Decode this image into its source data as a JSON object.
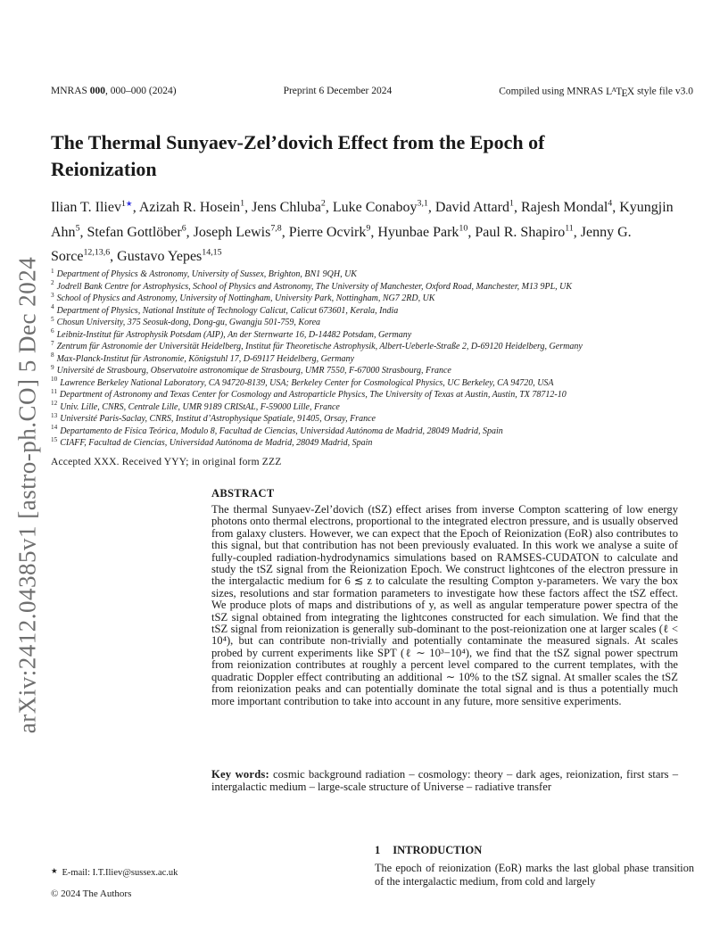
{
  "watermark": "arXiv:2412.04385v1  [astro-ph.CO]  5 Dec 2024",
  "header": {
    "journal": "MNRAS ",
    "volume_bold": "000",
    "pages": ", 000–000 (2024)",
    "center": "Preprint 6 December 2024",
    "right_prefix": "Compiled using MNRAS ",
    "latex": {
      "l": "L",
      "a": "A",
      "t": "T",
      "e": "E",
      "x": "X"
    },
    "right_suffix": " style file v3.0"
  },
  "title": "The Thermal Sunyaev-Zel’dovich Effect from the Epoch of Reionization",
  "authors": [
    {
      "name": "Ilian T. Iliev",
      "sup": "1",
      "star": true
    },
    {
      "name": "Azizah R. Hosein",
      "sup": "1"
    },
    {
      "name": "Jens Chluba",
      "sup": "2"
    },
    {
      "name": "Luke Conaboy",
      "sup": "3,1"
    },
    {
      "name": "David Attard",
      "sup": "1"
    },
    {
      "name": "Rajesh Mondal",
      "sup": "4"
    },
    {
      "name": "Kyungjin Ahn",
      "sup": "5"
    },
    {
      "name": "Stefan Gottlöber",
      "sup": "6"
    },
    {
      "name": "Joseph Lewis",
      "sup": "7,8"
    },
    {
      "name": "Pierre Ocvirk",
      "sup": "9"
    },
    {
      "name": "Hyunbae Park",
      "sup": "10"
    },
    {
      "name": "Paul R. Shapiro",
      "sup": "11"
    },
    {
      "name": "Jenny G. Sorce",
      "sup": "12,13,6"
    },
    {
      "name": "Gustavo Yepes",
      "sup": "14,15"
    }
  ],
  "affiliations": [
    {
      "num": "1",
      "text": "Department of Physics & Astronomy, University of Sussex, Brighton, BN1 9QH, UK"
    },
    {
      "num": "2",
      "text": "Jodrell Bank Centre for Astrophysics, School of Physics and Astronomy, The University of Manchester, Oxford Road, Manchester, M13 9PL, UK"
    },
    {
      "num": "3",
      "text": "School of Physics and Astronomy, University of Nottingham, University Park, Nottingham, NG7 2RD, UK"
    },
    {
      "num": "4",
      "text": "Department of Physics, National Institute of Technology Calicut, Calicut 673601, Kerala, India"
    },
    {
      "num": "5",
      "text": "Chosun University, 375 Seosuk-dong, Dong-gu, Gwangju 501-759, Korea"
    },
    {
      "num": "6",
      "text": "Leibniz-Institut für Astrophysik Potsdam (AIP), An der Sternwarte 16, D-14482 Potsdam, Germany"
    },
    {
      "num": "7",
      "text": "Zentrum für Astronomie der Universität Heidelberg, Institut für Theoretische Astrophysik, Albert-Ueberle-Straße 2, D-69120 Heidelberg, Germany"
    },
    {
      "num": "8",
      "text": "Max-Planck-Institut für Astronomie, Königstuhl 17, D-69117 Heidelberg, Germany"
    },
    {
      "num": "9",
      "text": "Université de Strasbourg, Observatoire astronomique de Strasbourg, UMR 7550, F-67000 Strasbourg, France"
    },
    {
      "num": "10",
      "text": "Lawrence Berkeley National Laboratory, CA 94720-8139, USA; Berkeley Center for Cosmological Physics, UC Berkeley, CA 94720, USA"
    },
    {
      "num": "11",
      "text": "Department of Astronomy and Texas Center for Cosmology and Astroparticle Physics, The University of Texas at Austin, Austin, TX 78712-10"
    },
    {
      "num": "12",
      "text": "Univ. Lille, CNRS, Centrale Lille, UMR 9189 CRIStAL, F-59000 Lille, France"
    },
    {
      "num": "13",
      "text": "Université Paris-Saclay, CNRS, Institut d’Astrophysique Spatiale, 91405, Orsay, France"
    },
    {
      "num": "14",
      "text": "Departamento de Física Teórica, Modulo 8, Facultad de Ciencias, Universidad Autónoma de Madrid, 28049 Madrid, Spain"
    },
    {
      "num": "15",
      "text": "CIAFF, Facultad de Ciencias, Universidad Autónoma de Madrid, 28049 Madrid, Spain"
    }
  ],
  "accepted_line": "Accepted XXX. Received YYY; in original form ZZZ",
  "abstract": {
    "heading": "ABSTRACT",
    "text": "The thermal Sunyaev-Zel’dovich (tSZ) effect arises from inverse Compton scattering of low energy photons onto thermal electrons, proportional to the integrated electron pressure, and is usually observed from galaxy clusters. However, we can expect that the Epoch of Reionization (EoR) also contributes to this signal, but that contribution has not been previously evaluated. In this work we analyse a suite of fully-coupled radiation-hydrodynamics simulations based on RAMSES-CUDATON to calculate and study the tSZ signal from the Reionization Epoch. We construct lightcones of the electron pressure in the intergalactic medium for 6 ≲ z to calculate the resulting Compton y-parameters. We vary the box sizes, resolutions and star formation parameters to investigate how these factors affect the tSZ effect. We produce plots of maps and distributions of y, as well as angular temperature power spectra of the tSZ signal obtained from integrating the lightcones constructed for each simulation. We find that the tSZ signal from reionization is generally sub-dominant to the post-reionization one at larger scales (ℓ < 10⁴), but can contribute non-trivially and potentially contaminate the measured signals. At scales probed by current experiments like SPT (ℓ ∼ 10³−10⁴), we find that the tSZ signal power spectrum from reionization contributes at roughly a percent level compared to the current templates, with the quadratic Doppler effect contributing an additional ∼ 10% to the tSZ signal. At smaller scales the tSZ from reionization peaks and can potentially dominate the total signal and is thus a potentially much more important contribution to take into account in any future, more sensitive experiments."
  },
  "keywords": {
    "label": "Key words:",
    "text": " cosmic background radiation – cosmology: theory – dark ages, reionization, first stars – intergalactic medium – large-scale structure of Universe – radiative transfer"
  },
  "section1": {
    "number": "1",
    "title": "INTRODUCTION",
    "text": "The epoch of reionization (EoR) marks the last global phase transition of the intergalactic medium, from cold and largely"
  },
  "footnote": {
    "symbol": "★",
    "text": "E-mail: I.T.Iliev@sussex.ac.uk"
  },
  "copyright": "© 2024 The Authors"
}
